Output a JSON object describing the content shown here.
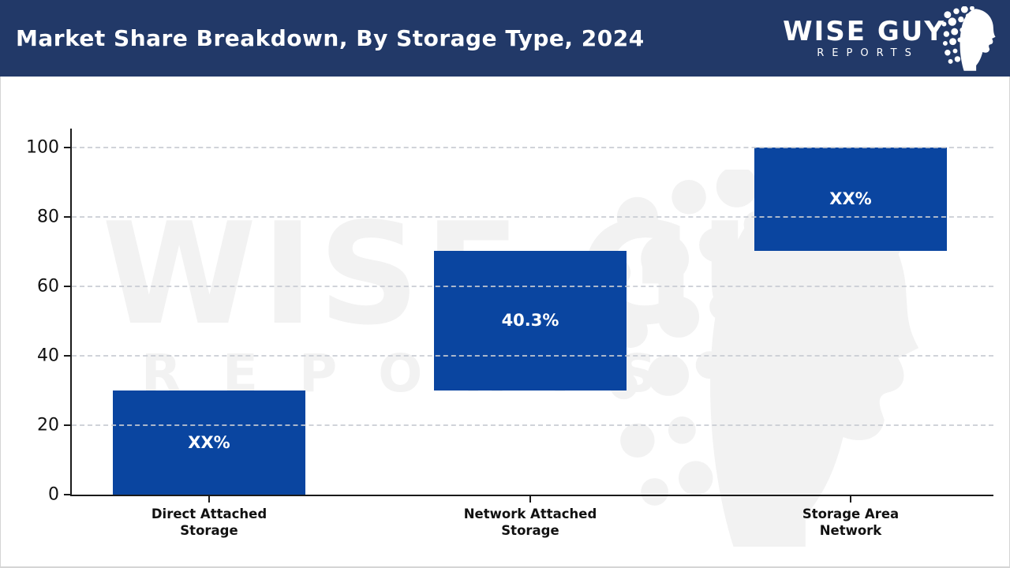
{
  "header": {
    "title": "Market Share Breakdown, By Storage Type, 2024",
    "background_color": "#223968",
    "logo": {
      "wordmark": "WISE GUY",
      "subtext": "REPORTS",
      "face_icon": "dot-face-profile-icon"
    }
  },
  "watermark": {
    "line1": "WISE GUY",
    "line2": "REPORTS",
    "face_icon": "dot-face-profile-icon"
  },
  "chart_data": {
    "type": "bar",
    "variant": "floating-waterfall-segments",
    "title": "Market Share Breakdown, By Storage Type, 2024",
    "categories": [
      "Direct Attached\nStorage",
      "Network Attached\nStorage",
      "Storage Area\nNetwork"
    ],
    "bars": [
      {
        "category": "Direct Attached Storage",
        "start": 0,
        "end": 30,
        "label": "XX%"
      },
      {
        "category": "Network Attached Storage",
        "start": 30,
        "end": 70.3,
        "label": "40.3%"
      },
      {
        "category": "Storage Area Network",
        "start": 70.3,
        "end": 100,
        "label": "XX%"
      }
    ],
    "xlabel": "",
    "ylabel": "",
    "ylim": [
      0,
      100
    ],
    "yticks": [
      0,
      20,
      40,
      60,
      80,
      100
    ],
    "grid": "horizontal-dashed",
    "grid_over_bars": true,
    "legend": "none",
    "bar_color": "#0a45a0",
    "bar_label_color": "#ffffff",
    "axis_color": "#1a1a1a"
  }
}
